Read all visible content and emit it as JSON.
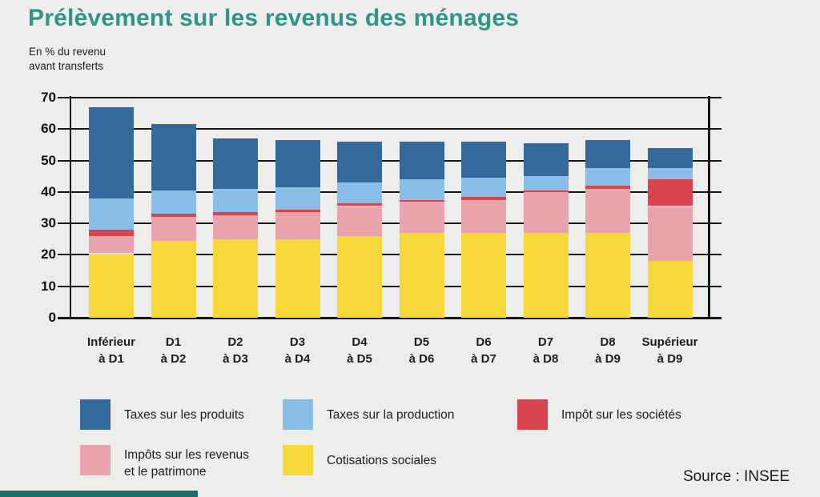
{
  "page": {
    "title": "Prélèvement sur les revenus des ménages",
    "subtitle_line1": "En % du revenu",
    "subtitle_line2": "avant transferts",
    "source": "Source : INSEE"
  },
  "colors": {
    "background": "#ededec",
    "title": "#2f948a",
    "axis": "#161616",
    "text": "#1d1d1b",
    "footer_bar": "#1f6e69",
    "taxes_produits": "#34699c",
    "taxes_production": "#88bee7",
    "impot_societes": "#d8454f",
    "impots_revenus": "#e9a3ab",
    "cotisations": "#f6d839"
  },
  "chart_data": {
    "type": "bar",
    "stacked": true,
    "title": "Prélèvement sur les revenus des ménages",
    "ylabel": "En % du revenu avant transferts",
    "xlabel": "",
    "ylim": [
      0,
      70
    ],
    "yticks": [
      70,
      60,
      50,
      40,
      30,
      20,
      10,
      0
    ],
    "grid": true,
    "legend_position": "bottom",
    "categories": [
      "Inférieur à D1",
      "D1 à D2",
      "D2 à D3",
      "D3 à D4",
      "D4 à D5",
      "D5 à D6",
      "D6 à D7",
      "D7 à D8",
      "D8 à D9",
      "Supérieur à D9"
    ],
    "category_labels": [
      [
        "Inférieur",
        "à D1"
      ],
      [
        "D1",
        "à D2"
      ],
      [
        "D2",
        "à D3"
      ],
      [
        "D3",
        "à D4"
      ],
      [
        "D4",
        "à D5"
      ],
      [
        "D5",
        "à D6"
      ],
      [
        "D6",
        "à D7"
      ],
      [
        "D7",
        "à D8"
      ],
      [
        "D8",
        "à D9"
      ],
      [
        "Supérieur",
        "à D9"
      ]
    ],
    "series": [
      {
        "name": "Cotisations sociales",
        "color_key": "cotisations",
        "values": [
          20.5,
          24.5,
          25,
          25,
          26,
          27,
          27,
          27,
          27,
          18
        ]
      },
      {
        "name": "Impôts sur les revenus et le patrimone",
        "color_key": "impots_revenus",
        "values": [
          5.5,
          7.5,
          7.5,
          8.5,
          9.5,
          10,
          10.5,
          13,
          14,
          17.5
        ]
      },
      {
        "name": "Impôt sur les sociétés",
        "color_key": "impot_societes",
        "values": [
          2,
          1,
          1,
          1,
          1,
          0.5,
          1,
          0.5,
          1,
          8.5
        ]
      },
      {
        "name": "Taxes sur la production",
        "color_key": "taxes_production",
        "values": [
          10,
          7.5,
          7.5,
          7,
          6.5,
          6.5,
          6,
          4.5,
          5.5,
          3.5
        ]
      },
      {
        "name": "Taxes sur les produits",
        "color_key": "taxes_produits",
        "values": [
          29,
          21,
          16,
          15,
          13,
          12,
          11.5,
          10.5,
          9,
          6.5
        ]
      }
    ],
    "totals": [
      67,
      61.5,
      57,
      56.5,
      56,
      56,
      56,
      55.5,
      56.5,
      54
    ]
  },
  "legend": {
    "rows": [
      [
        {
          "label_lines": [
            "Taxes sur les produits"
          ],
          "color_key": "taxes_produits"
        },
        {
          "label_lines": [
            "Taxes sur la production"
          ],
          "color_key": "taxes_production"
        },
        {
          "label_lines": [
            "Impôt sur les sociétés"
          ],
          "color_key": "impot_societes"
        }
      ],
      [
        {
          "label_lines": [
            "Impôts sur les revenus",
            "et le patrimone"
          ],
          "color_key": "impots_revenus"
        },
        {
          "label_lines": [
            "Cotisations sociales"
          ],
          "color_key": "cotisations"
        }
      ]
    ]
  }
}
